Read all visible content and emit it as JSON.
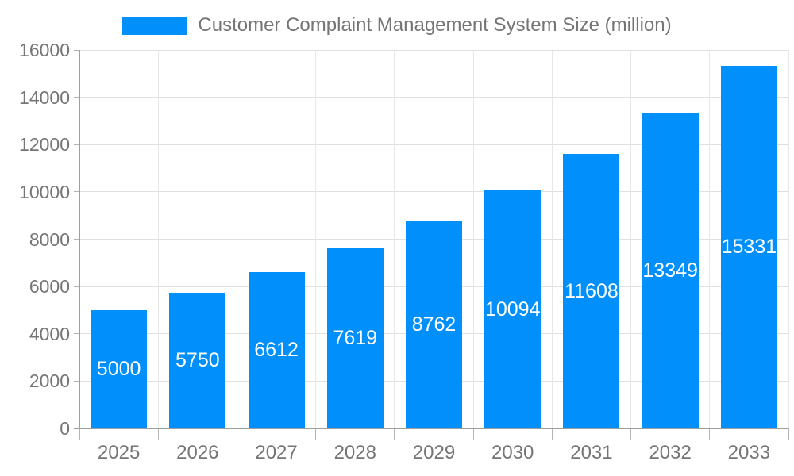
{
  "legend": {
    "label": "Customer Complaint Management System Size (million)"
  },
  "chart_data": {
    "type": "bar",
    "title": "Customer Complaint Management System Size (million)",
    "series_name": "Customer Complaint Management System Size (million)",
    "categories": [
      "2025",
      "2026",
      "2027",
      "2028",
      "2029",
      "2030",
      "2031",
      "2032",
      "2033"
    ],
    "values": [
      5000,
      5750,
      6612,
      7619,
      8762,
      10094,
      11608,
      13349,
      15331
    ],
    "xlabel": "",
    "ylabel": "",
    "ylim": [
      0,
      16000
    ],
    "ytick_step": 2000,
    "yticks": [
      0,
      2000,
      4000,
      6000,
      8000,
      10000,
      12000,
      14000,
      16000
    ],
    "grid": true,
    "legend_position": "top",
    "value_labels": "inside-center",
    "colors": {
      "bar": "#008FFB",
      "value_label": "#ffffff",
      "axis_text": "#757575",
      "grid": "#e0e0e0",
      "axis_line": "#9e9e9e",
      "tick": "#b5b5b5"
    }
  }
}
